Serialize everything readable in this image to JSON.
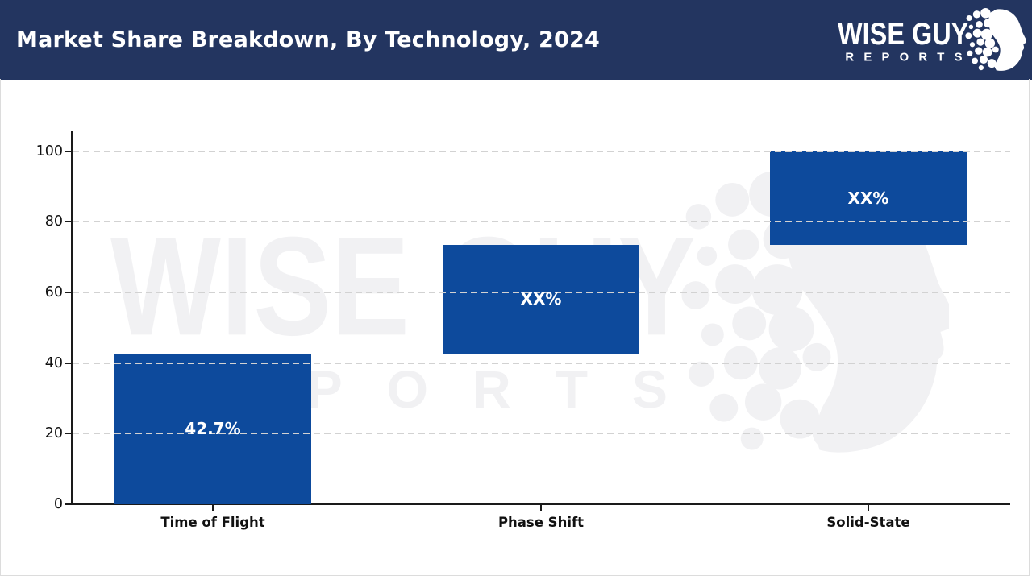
{
  "header": {
    "title": "Market Share Breakdown, By Technology, 2024",
    "background_color": "#233560",
    "text_color": "#ffffff"
  },
  "brand": {
    "line1": "WISE GUY",
    "line2": "REPORTS"
  },
  "watermark": {
    "color": "#f1f1f3"
  },
  "chart_data": {
    "type": "bar",
    "subtype": "floating-waterfall",
    "title": "Market Share Breakdown, By Technology, 2024",
    "categories": [
      "Time of Flight",
      "Phase Shift",
      "Solid-State"
    ],
    "series": [
      {
        "name": "Market share (%)",
        "segments": [
          {
            "category": "Time of Flight",
            "start": 0,
            "end": 42.7,
            "label": "42.7%"
          },
          {
            "category": "Phase Shift",
            "start": 42.7,
            "end": 73.5,
            "label": "XX%"
          },
          {
            "category": "Solid-State",
            "start": 73.5,
            "end": 100,
            "label": "XX%"
          }
        ]
      }
    ],
    "xlabel": "",
    "ylabel": "",
    "yticks": [
      0,
      20,
      40,
      60,
      80,
      100
    ],
    "ylim": [
      0,
      105.6
    ],
    "grid": "horizontal-dashed",
    "grid_on": true,
    "grid_color": "#d2d2d2",
    "legend": "none",
    "bar_color": "#0d4a9c",
    "bar_label_color": "#ffffff",
    "axis_color": "#1a1a1a",
    "tick_label_color": "#111111"
  }
}
